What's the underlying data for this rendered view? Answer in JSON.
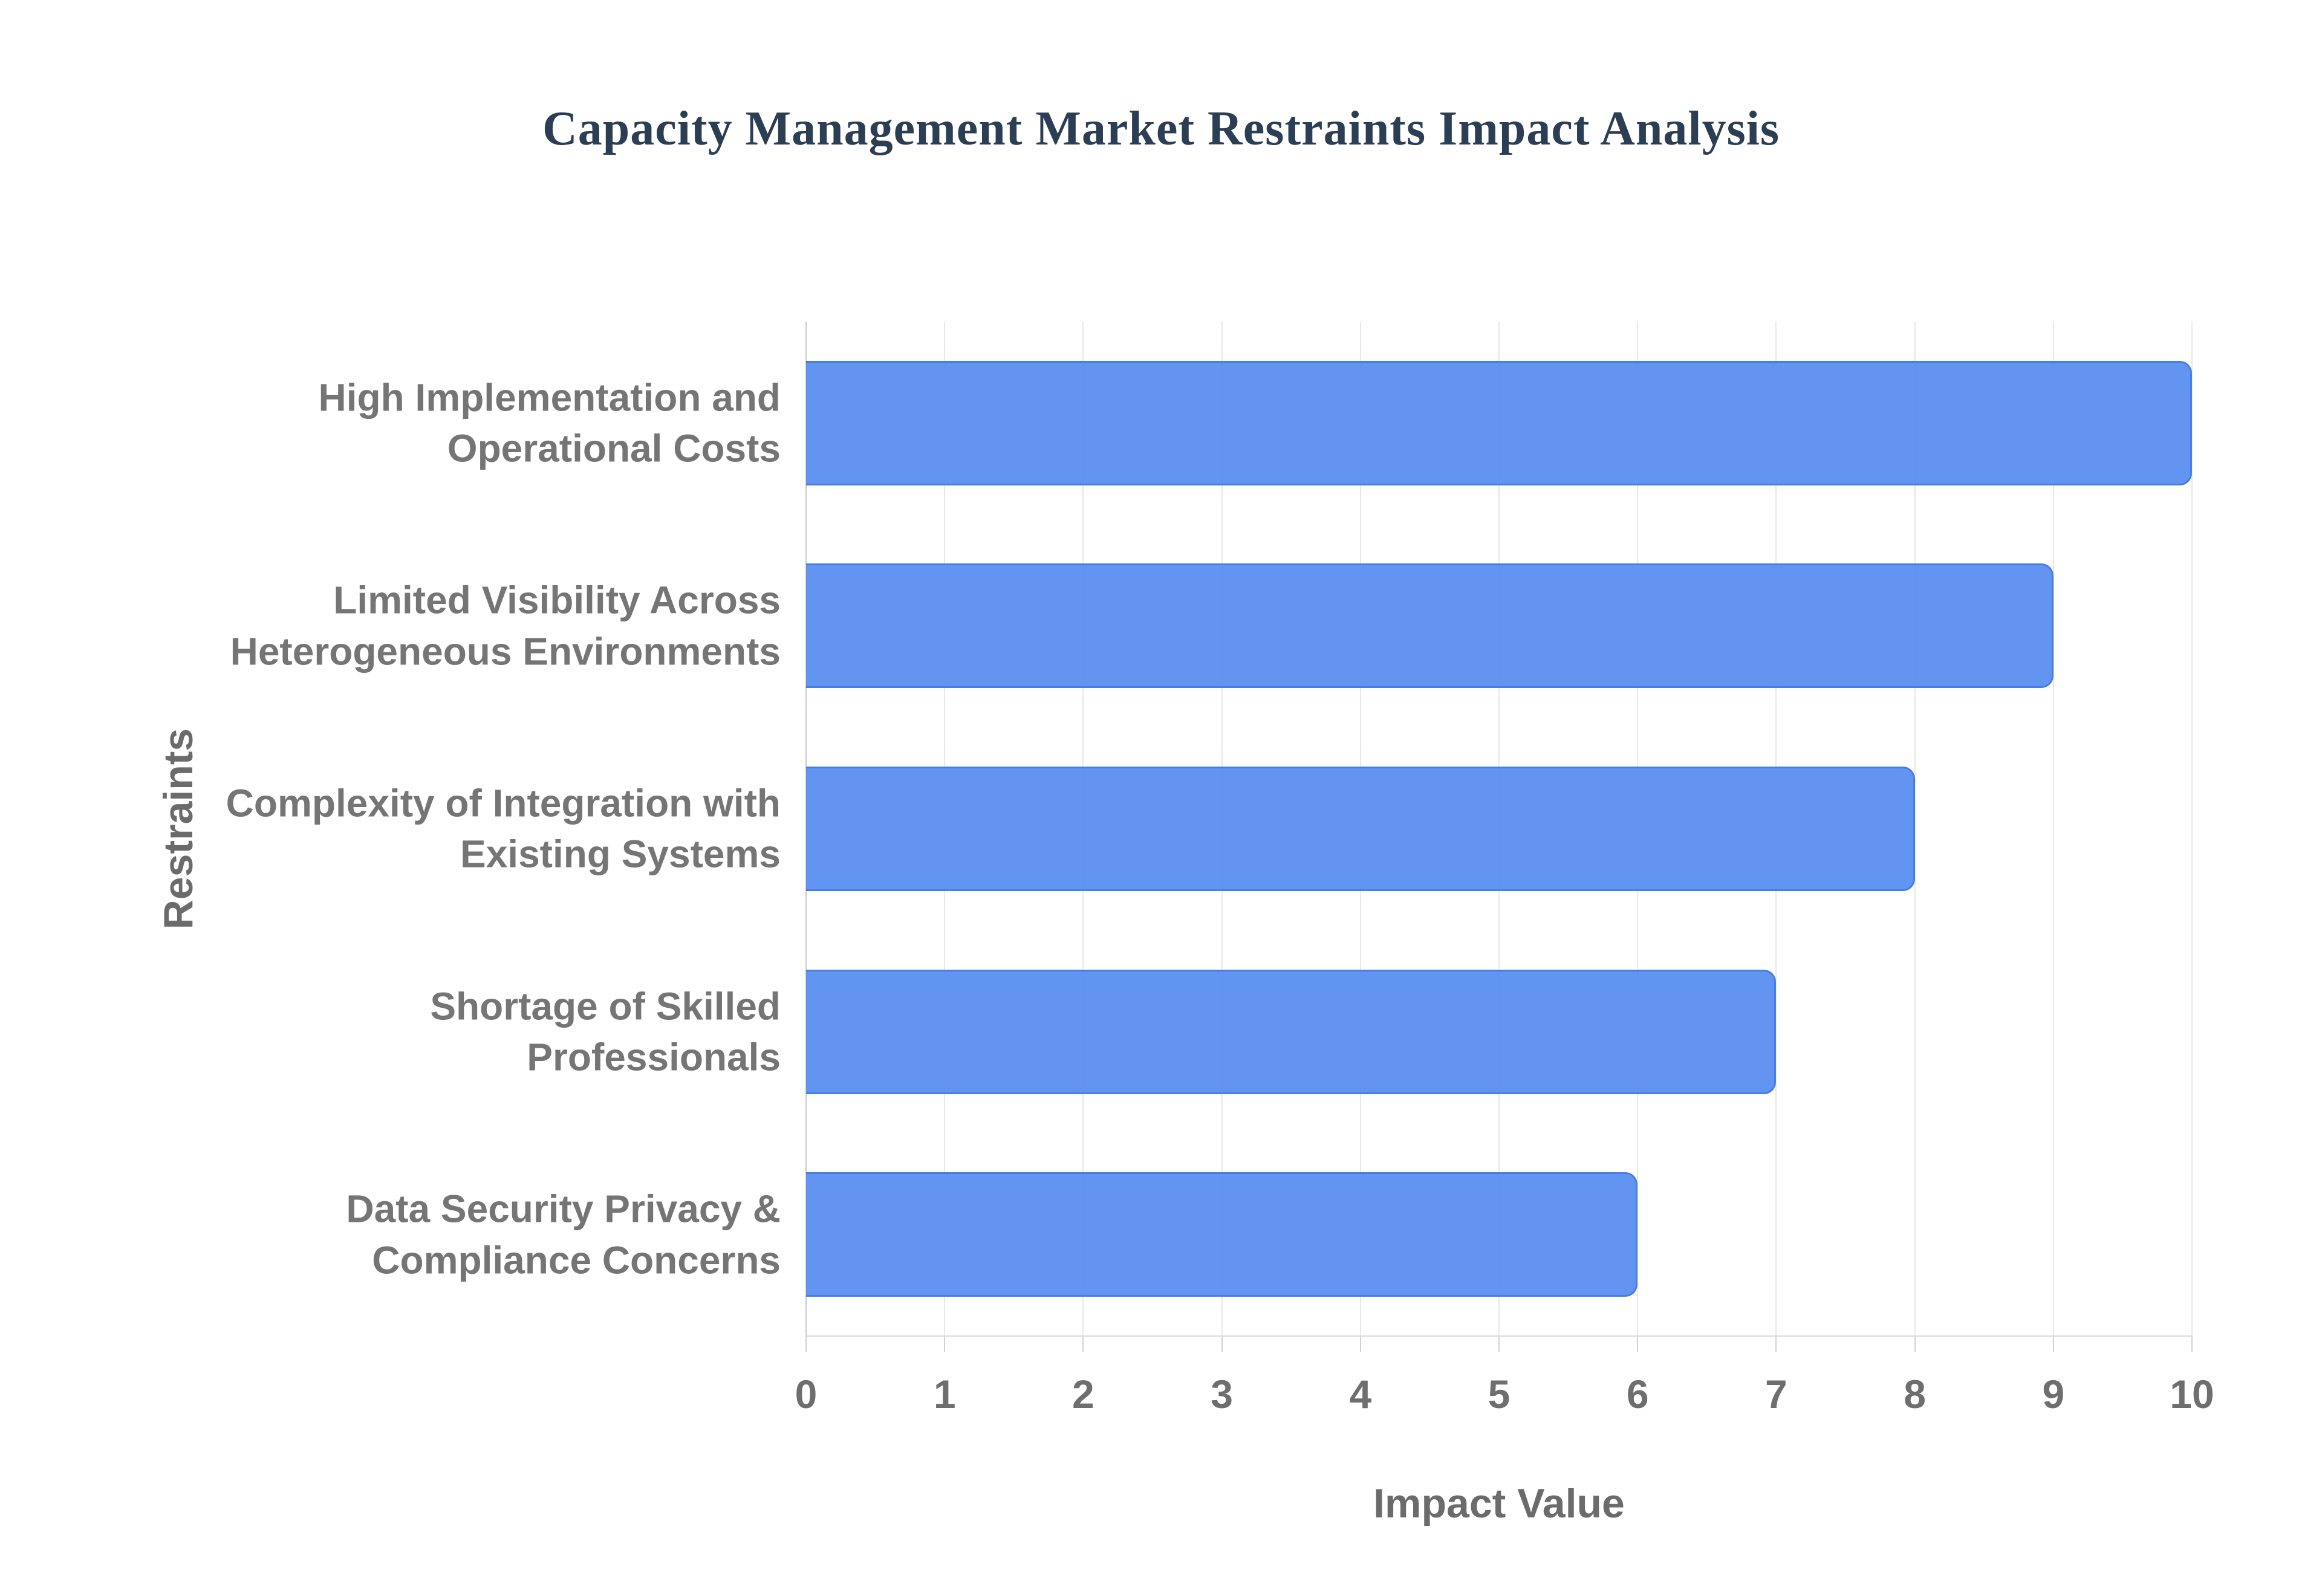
{
  "chart_data": {
    "type": "bar",
    "orientation": "horizontal",
    "title": "Capacity Management Market Restraints Impact Analysis",
    "categories": [
      "High Implementation and\nOperational Costs",
      "Limited Visibility Across\nHeterogeneous Environments",
      "Complexity of Integration with\nExisting Systems",
      "Shortage of Skilled\nProfessionals",
      "Data Security Privacy &\nCompliance Concerns"
    ],
    "values": [
      10,
      9,
      8,
      7,
      6
    ],
    "xlabel": "Impact Value",
    "ylabel": "Restraints",
    "xlim": [
      0,
      10
    ],
    "x_ticks": [
      0,
      1,
      2,
      3,
      4,
      5,
      6,
      7,
      8,
      9,
      10
    ],
    "grid": "vertical-only",
    "legend": "none",
    "colors": {
      "bar_fill": "#5a8ef0",
      "bar_border": "#346ad4",
      "title_text": "#2b3e54",
      "label_text": "#757575",
      "tick_text": "#6e6e6e",
      "gridline": "#e8e8e8",
      "axis_zero_line": "#c9c9c9",
      "baseline": "#dadada",
      "background": "#ffffff"
    }
  }
}
